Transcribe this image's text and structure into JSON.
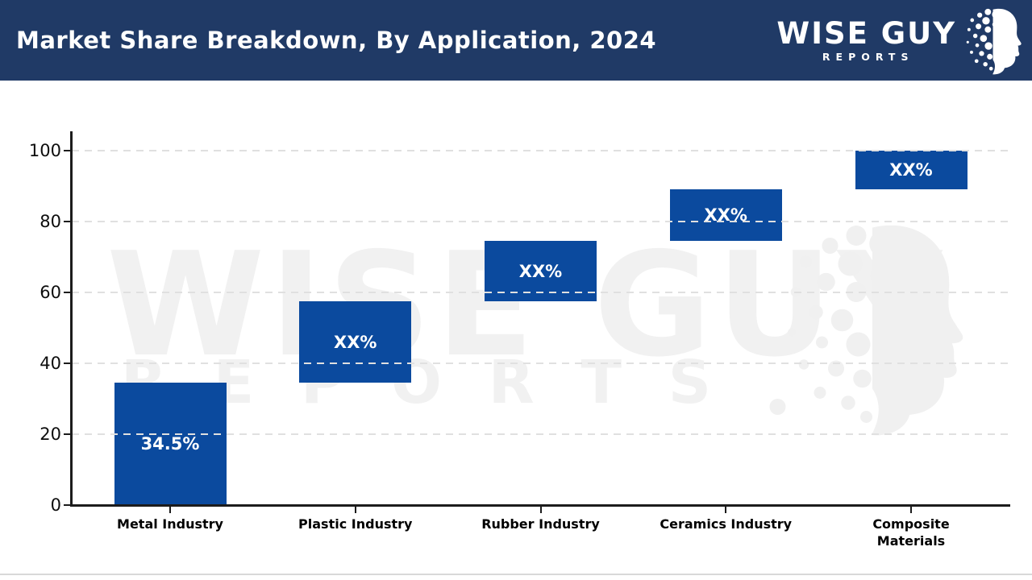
{
  "header": {
    "title": "Market Share Breakdown, By Application, 2024",
    "logo": {
      "brand": "WISE GUY",
      "sub": "REPORTS"
    }
  },
  "watermark": {
    "brand": "WISE GUY",
    "sub": "R E P O R T S"
  },
  "chart_data": {
    "type": "bar",
    "variant": "floating-segment-waterfall",
    "title": "Market Share Breakdown, By Application, 2024",
    "categories": [
      "Metal Industry",
      "Plastic Industry",
      "Rubber Industry",
      "Ceramics Industry",
      "Composite Materials"
    ],
    "segments": [
      {
        "category": "Metal Industry",
        "start": 0,
        "end": 34.5,
        "label": "34.5%"
      },
      {
        "category": "Plastic Industry",
        "start": 34.5,
        "end": 57.5,
        "label": "XX%"
      },
      {
        "category": "Rubber Industry",
        "start": 57.5,
        "end": 74.5,
        "label": "XX%"
      },
      {
        "category": "Ceramics Industry",
        "start": 74.5,
        "end": 89,
        "label": "XX%"
      },
      {
        "category": "Composite Materials",
        "start": 89,
        "end": 100,
        "label": "XX%"
      }
    ],
    "xlabel": "",
    "ylabel": "",
    "y_ticks": [
      0,
      20,
      40,
      60,
      80,
      100
    ],
    "ylim": [
      0,
      105
    ],
    "grid": "horizontal-dashed",
    "legend": "none",
    "colors": {
      "bar": "#0b4a9e",
      "bar_label": "#ffffff",
      "header_bg": "#203a66",
      "header_text": "#ffffff",
      "grid": "#e0e0e0",
      "axis": "#1c1c1c",
      "tick_text": "#0d0d0d",
      "watermark": "#f1f1f1",
      "bottom_rule": "#d8d8d8"
    }
  }
}
